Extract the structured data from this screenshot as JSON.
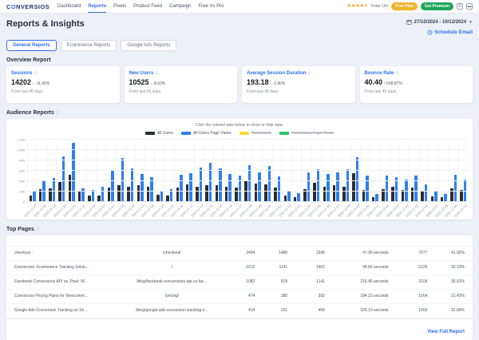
{
  "topnav": {
    "logo": {
      "prefix": "C",
      "accent": "O",
      "suffix": "NVERSIOS"
    },
    "items": [
      {
        "label": "Dashboard",
        "active": false
      },
      {
        "label": "Reports",
        "active": true
      },
      {
        "label": "Pixels",
        "active": false
      },
      {
        "label": "Product Feed",
        "active": false
      },
      {
        "label": "Campaign",
        "active": false
      },
      {
        "label": "Free Vs Pro",
        "active": false
      }
    ],
    "rating": "4.5",
    "rate_us": "Rate Us!",
    "plan_badge": "Free Plan",
    "premium_badge": "Get Premium"
  },
  "header": {
    "title": "Reports & Insights",
    "date_range": "27/10/2024 - 10/12/2024",
    "schedule_email": "Schedule Email"
  },
  "tabs": [
    {
      "label": "General Reports",
      "active": true
    },
    {
      "label": "Ecommerce Reports",
      "active": false
    },
    {
      "label": "Google Ads Reports",
      "active": false
    }
  ],
  "overview": {
    "section_title": "Overview Report",
    "cards": [
      {
        "title": "Sessions",
        "value": "14202",
        "trend": "down",
        "change": "-11.42%",
        "subtitle": "From last 45 days"
      },
      {
        "title": "New Users",
        "value": "10525",
        "trend": "down",
        "change": "-8.63%",
        "subtitle": "From last 45 days"
      },
      {
        "title": "Average Session Duration",
        "value": "193.18",
        "trend": "down",
        "change": "-2.86%",
        "subtitle": "From last 45 days"
      },
      {
        "title": "Bounce Rate",
        "value": "40.40",
        "trend": "up",
        "change": "608.87%",
        "subtitle": "From last 45 days"
      }
    ]
  },
  "audience": {
    "section_title": "Audience Reports",
    "hint": "Click the colored tabs below to show or hide data.",
    "legend": [
      {
        "label": "All Users",
        "color": "#2b2d31",
        "hidden": false
      },
      {
        "label": "All Users Page Views",
        "color": "#2f80ed",
        "hidden": false
      },
      {
        "label": "Purchasers",
        "color": "#fdd835",
        "hidden": true
      },
      {
        "label": "Purchasers Page Views",
        "color": "#27c26b",
        "hidden": true
      }
    ]
  },
  "chart_data": {
    "type": "bar",
    "title": "Audience Reports",
    "xlabel": "",
    "ylabel": "",
    "ylim": [
      0,
      1200
    ],
    "yticks": [
      0,
      200,
      400,
      600,
      800,
      1000,
      1200
    ],
    "ytick_labels": [
      "0",
      "200",
      "400",
      "600",
      "800",
      "1,000",
      "1,200"
    ],
    "grid": true,
    "legend_position": "top",
    "x": [
      "2024-10-27",
      "2024-10-28",
      "2024-10-29",
      "2024-10-30",
      "2024-10-31",
      "2024-11-01",
      "2024-11-02",
      "2024-11-03",
      "2024-11-04",
      "2024-11-05",
      "2024-11-06",
      "2024-11-07",
      "2024-11-08",
      "2024-11-09",
      "2024-11-10",
      "2024-11-11",
      "2024-11-12",
      "2024-11-13",
      "2024-11-14",
      "2024-11-15",
      "2024-11-16",
      "2024-11-17",
      "2024-11-18",
      "2024-11-19",
      "2024-11-20",
      "2024-11-21",
      "2024-11-22",
      "2024-11-23",
      "2024-11-24",
      "2024-11-25",
      "2024-11-26",
      "2024-11-27",
      "2024-11-28",
      "2024-11-29",
      "2024-11-30",
      "2024-12-01",
      "2024-12-02",
      "2024-12-03",
      "2024-12-04",
      "2024-12-05",
      "2024-12-06",
      "2024-12-07",
      "2024-12-08",
      "2024-12-09",
      "2024-12-10"
    ],
    "series": [
      {
        "name": "All Users",
        "color": "#2b2d31",
        "values": [
          130,
          240,
          265,
          390,
          520,
          205,
          130,
          120,
          270,
          330,
          300,
          320,
          290,
          145,
          120,
          280,
          340,
          300,
          320,
          330,
          285,
          280,
          420,
          350,
          335,
          270,
          130,
          95,
          245,
          370,
          290,
          330,
          285,
          550,
          230,
          85,
          250,
          295,
          230,
          280,
          215,
          115,
          95,
          265,
          235
        ]
      },
      {
        "name": "All Users Page Views",
        "color": "#2f80ed",
        "values": [
          210,
          420,
          465,
          880,
          1140,
          265,
          230,
          285,
          600,
          850,
          640,
          545,
          480,
          220,
          245,
          520,
          560,
          660,
          760,
          645,
          545,
          505,
          705,
          565,
          685,
          500,
          205,
          165,
          565,
          625,
          545,
          565,
          635,
          860,
          505,
          160,
          515,
          470,
          425,
          505,
          335,
          195,
          155,
          525,
          425
        ]
      }
    ],
    "hidden_series": [
      "Purchasers",
      "Purchasers Page Views"
    ]
  },
  "top_pages": {
    "section_title": "Top Pages",
    "rows": [
      [
        "checkout -",
        "/checkout/",
        "2494",
        "1480",
        "1596",
        "47.90 seconds",
        "7077",
        "41.92%"
      ],
      [
        "Conversios: Ecommerce Tracking Soluti...",
        "/",
        "1612",
        "1141",
        "1402",
        "94.83 seconds",
        "5126",
        "33.10%"
      ],
      [
        "Facebook Conversions API vs. Pixel: W...",
        "/blog/facebook-conversions-api-vs-fac...",
        "1082",
        "819",
        "1141",
        "216.45 seconds",
        "3105",
        "35.41%"
      ],
      [
        "Conversios Pricing Plans for Woocomm...",
        "/pricing/",
        "474",
        "385",
        "392",
        "184.23 seconds",
        "1564",
        "21.43%"
      ],
      [
        "Google Ads Conversion Tracking on Sh...",
        "/blog/google-ads-conversion-tracking-s...",
        "414",
        "331",
        "458",
        "225.10 seconds",
        "1993",
        "32.89%"
      ]
    ],
    "footer_link": "View Full Report"
  },
  "colors": {
    "accent_blue": "#2f6fed",
    "bar_black": "#2b2d31",
    "bar_blue": "#2f80ed",
    "down_red": "#e23b3b",
    "up_green": "#1ea65a",
    "free_pill": "#f0b429",
    "premium_pill": "#1ea65a",
    "star_gold": "#f6a623"
  }
}
